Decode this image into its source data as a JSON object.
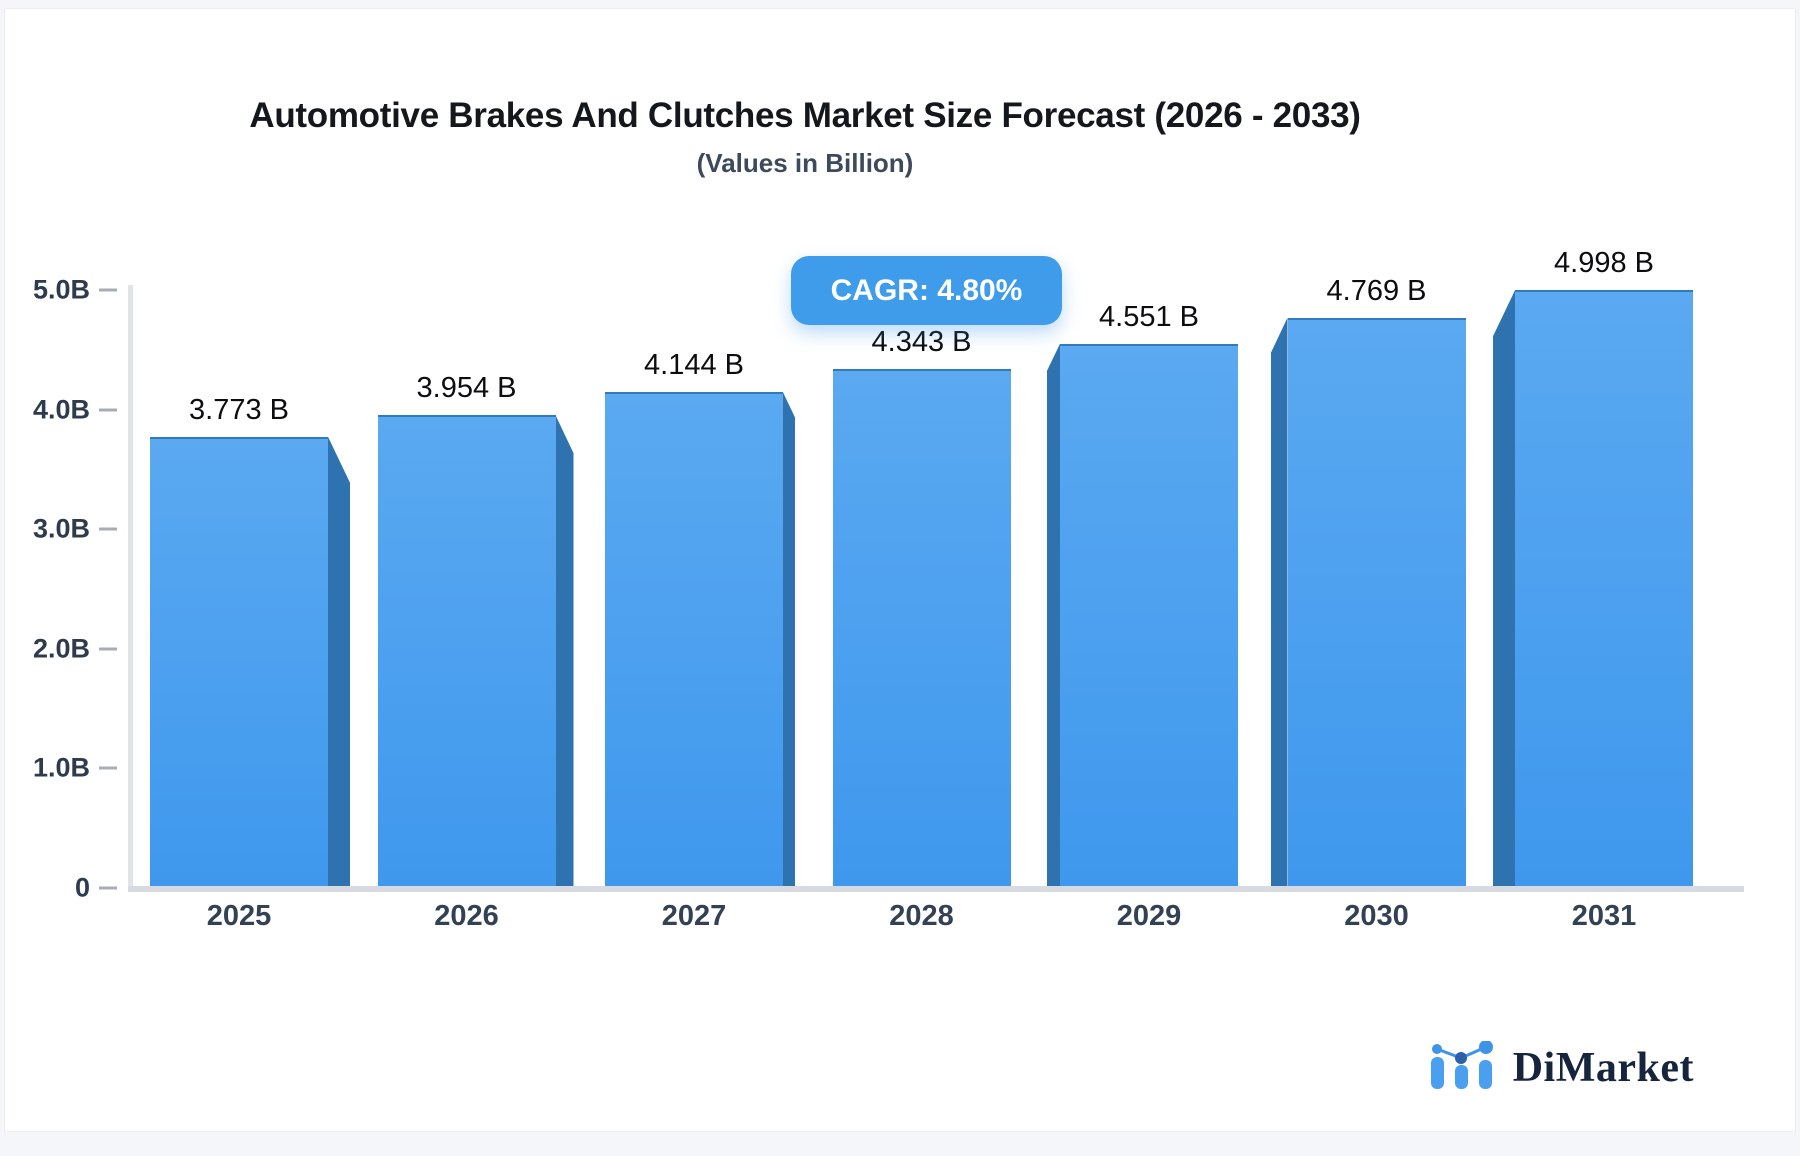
{
  "page": {
    "title": "Automotive Brakes And Clutches Market Size Forecast (2026 - 2033)",
    "subtitle": "(Values in Billion)",
    "cagr_badge": "CAGR: 4.80%",
    "brand_name": "DiMarket"
  },
  "colors": {
    "bar_face_top": "#5aa9f1",
    "bar_face_bottom": "#3f98ed",
    "bar_side": "#2e73b0",
    "badge_bg": "#3f9ceb",
    "axis_line": "#d7dbe1",
    "tick_dash": "#a7adb6",
    "value_label": "#0c0d0f",
    "axis_label": "#2e3b4e",
    "brand_navy": "#16243d",
    "logo_blue": "#4aa0ef"
  },
  "chart_data": {
    "type": "bar",
    "title": "Automotive Brakes And Clutches Market Size Forecast (2026 - 2033)",
    "subtitle": "(Values in Billion)",
    "annotation": "CAGR: 4.80%",
    "categories": [
      "2025",
      "2026",
      "2027",
      "2028",
      "2029",
      "2030",
      "2031"
    ],
    "values": [
      3.773,
      3.954,
      4.144,
      4.343,
      4.551,
      4.769,
      4.998
    ],
    "value_labels": [
      "3.773 B",
      "3.954 B",
      "4.144 B",
      "4.343 B",
      "4.551 B",
      "4.769 B",
      "4.998 B"
    ],
    "xlabel": "",
    "ylabel": "",
    "ylim": [
      0,
      5
    ],
    "yticks": [
      0,
      1,
      2,
      3,
      4,
      5
    ],
    "ytick_labels": [
      "0",
      "1.0B",
      "2.0B",
      "3.0B",
      "4.0B",
      "5.0B"
    ],
    "grid": false,
    "legend": false,
    "style": "pseudo-3d bars, perspective vanishing at center bar"
  }
}
